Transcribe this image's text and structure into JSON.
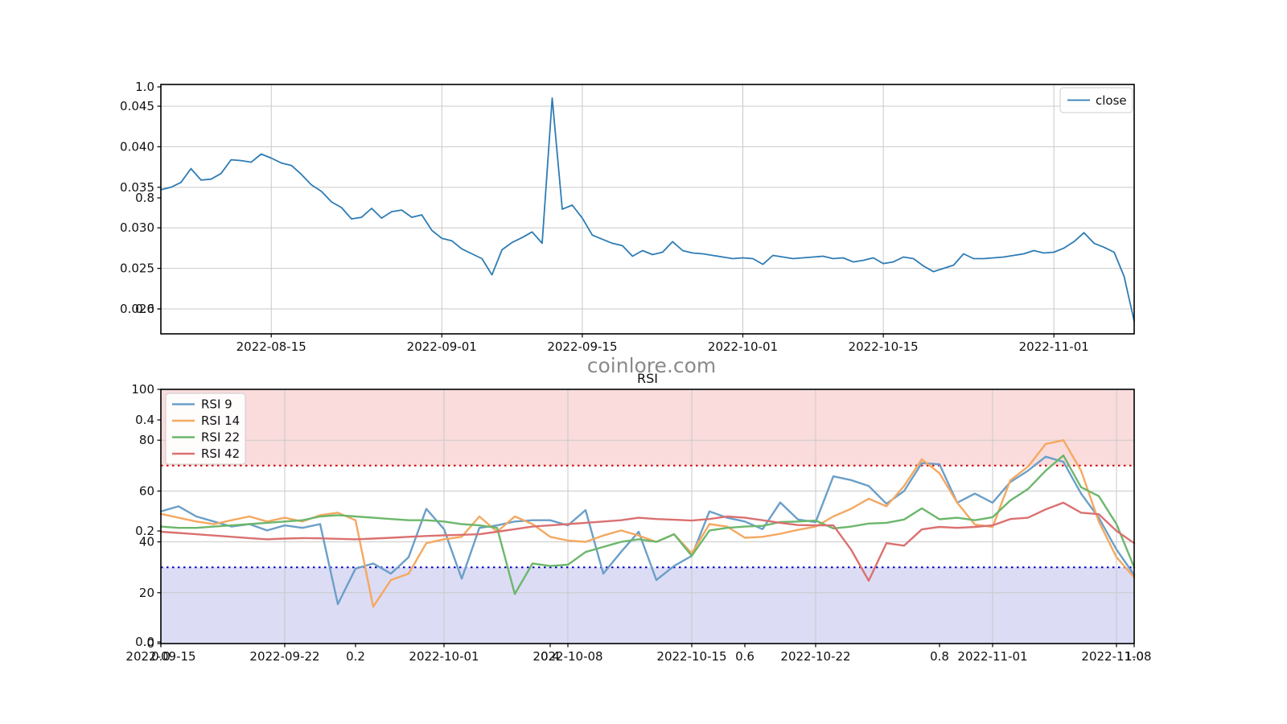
{
  "watermark": {
    "text": "coinlore.com",
    "color": "#8a8a8a"
  },
  "overlay_axis": {
    "x_tick_labels": [
      "0.0",
      "0.2",
      "0.4",
      "0.6",
      "0.8",
      "1.0"
    ],
    "y_tick_labels": [
      "0.0",
      "0.2",
      "0.4",
      "0.6",
      "0.8",
      "1.0"
    ]
  },
  "chart_data": [
    {
      "type": "line",
      "name": "price-chart",
      "x_start_date": "2022-08-04",
      "x_end_date": "2022-11-09",
      "x_tick_labels": [
        "2022-08-15",
        "2022-09-01",
        "2022-09-15",
        "2022-10-01",
        "2022-10-15",
        "2022-11-01"
      ],
      "x_tick_day_offsets": [
        11,
        28,
        42,
        58,
        72,
        89
      ],
      "y_tick_labels": [
        "0.020",
        "0.025",
        "0.030",
        "0.035",
        "0.040",
        "0.045"
      ],
      "y_tick_values": [
        0.02,
        0.025,
        0.03,
        0.035,
        0.04,
        0.045
      ],
      "ylim": [
        0.01693,
        0.04768
      ],
      "grid": true,
      "legend_position": "upper right",
      "series": [
        {
          "name": "close",
          "color": "#2d7cb5",
          "width": 1.8,
          "values": [
            0.0347,
            0.035,
            0.0356,
            0.0373,
            0.0359,
            0.036,
            0.0367,
            0.0384,
            0.0383,
            0.0381,
            0.0391,
            0.0386,
            0.038,
            0.0377,
            0.0366,
            0.0353,
            0.0345,
            0.0332,
            0.0325,
            0.0311,
            0.0313,
            0.0324,
            0.0312,
            0.032,
            0.0322,
            0.0313,
            0.0316,
            0.0297,
            0.0287,
            0.0284,
            0.0274,
            0.0268,
            0.0262,
            0.0242,
            0.0273,
            0.0282,
            0.0288,
            0.0295,
            0.0281,
            0.046,
            0.0323,
            0.0328,
            0.0312,
            0.0291,
            0.0286,
            0.0281,
            0.0278,
            0.0265,
            0.0272,
            0.0267,
            0.027,
            0.0283,
            0.0272,
            0.0269,
            0.0268,
            0.0266,
            0.0264,
            0.0262,
            0.0263,
            0.0262,
            0.0255,
            0.0266,
            0.0264,
            0.0262,
            0.0263,
            0.0264,
            0.0265,
            0.0262,
            0.0263,
            0.0258,
            0.026,
            0.0263,
            0.0256,
            0.0258,
            0.0264,
            0.0262,
            0.0253,
            0.0246,
            0.025,
            0.0254,
            0.0268,
            0.0262,
            0.0262,
            0.0263,
            0.0264,
            0.0266,
            0.0268,
            0.0272,
            0.0269,
            0.027,
            0.0275,
            0.0283,
            0.0294,
            0.0281,
            0.0276,
            0.027,
            0.024,
            0.0185
          ]
        }
      ]
    },
    {
      "type": "line",
      "name": "rsi-chart",
      "title": "RSI",
      "x_start_date": "2022-09-15",
      "x_end_date": "2022-11-09",
      "x_tick_labels": [
        "2022-09-15",
        "2022-09-22",
        "2022-10-01",
        "2022-10-08",
        "2022-10-15",
        "2022-10-22",
        "2022-11-01",
        "2022-11-08"
      ],
      "x_tick_day_offsets": [
        0,
        7,
        16,
        23,
        30,
        37,
        47,
        54
      ],
      "y_tick_labels": [
        "0",
        "20",
        "40",
        "60",
        "80",
        "100"
      ],
      "y_tick_values": [
        0,
        20,
        40,
        60,
        80,
        100
      ],
      "ylim": [
        0,
        100
      ],
      "grid": true,
      "legend_position": "upper left",
      "bands": [
        {
          "from": 70,
          "to": 100,
          "color": "#fadcdd",
          "meaning": "overbought"
        },
        {
          "from": 0,
          "to": 30,
          "color": "#dcdcf5",
          "meaning": "oversold"
        }
      ],
      "hlines": [
        {
          "y": 70,
          "color": "#cc0000",
          "style": "dotted"
        },
        {
          "y": 30,
          "color": "#0000bb",
          "style": "dotted"
        }
      ],
      "series": [
        {
          "name": "RSI 9",
          "color": "#6b9fc8",
          "width": 2.4,
          "values": [
            52,
            54,
            50,
            48,
            46,
            47,
            44.5,
            46.5,
            45.5,
            47,
            15.5,
            29.5,
            31.5,
            27.5,
            34,
            53,
            45,
            25.5,
            45.5,
            46.5,
            48,
            48.5,
            48.5,
            46.5,
            52.5,
            27.5,
            36,
            44,
            25,
            30.5,
            34.5,
            52,
            49.5,
            48,
            45,
            55.5,
            48.8,
            47.8,
            65.8,
            64.3,
            62,
            55,
            60,
            71,
            70.5,
            55.4,
            59,
            55.4,
            63.5,
            68,
            73.5,
            71.5,
            59,
            49.5,
            37,
            27
          ]
        },
        {
          "name": "RSI 14",
          "color": "#f5a860",
          "width": 2.4,
          "values": [
            51,
            49.5,
            48,
            47,
            48.5,
            50,
            48,
            49.5,
            48,
            50.5,
            51.5,
            48.5,
            14.5,
            25,
            27.5,
            39.5,
            41,
            42,
            50,
            44,
            50,
            47,
            42,
            40.5,
            40,
            42.5,
            44.5,
            42.5,
            40,
            43,
            35.5,
            47,
            46,
            41.6,
            42,
            43.2,
            44.7,
            46,
            50,
            53,
            57,
            54,
            62,
            72.5,
            67,
            55.4,
            46.8,
            45.9,
            64.2,
            69.6,
            78.5,
            80,
            68,
            48,
            34,
            26
          ]
        },
        {
          "name": "RSI 22",
          "color": "#6cb76c",
          "width": 2.4,
          "values": [
            46,
            45.5,
            45.5,
            46,
            46.5,
            47,
            47.5,
            48,
            48.5,
            50,
            50.5,
            50,
            49.5,
            49,
            48.5,
            48.5,
            48,
            47,
            46.5,
            45.5,
            19.5,
            31.5,
            30.5,
            31,
            36,
            38,
            40,
            41,
            40,
            43,
            34.5,
            44.5,
            45.5,
            46,
            46.3,
            47.8,
            48,
            48.4,
            45.3,
            46,
            47.2,
            47.5,
            48.8,
            53.2,
            48.9,
            49.5,
            48.5,
            49.7,
            56.3,
            60.8,
            68,
            74,
            61.5,
            58,
            47,
            30
          ]
        },
        {
          "name": "RSI 42",
          "color": "#db7070",
          "width": 2.4,
          "values": [
            44,
            43.5,
            43,
            42.5,
            42,
            41.5,
            41,
            41.3,
            41.5,
            41.4,
            41.2,
            41,
            41.3,
            41.6,
            42,
            42.3,
            42.6,
            42.8,
            43,
            44,
            45,
            46,
            46.5,
            47,
            47.5,
            48,
            48.5,
            49.5,
            49,
            48.7,
            48.4,
            49,
            50,
            49.5,
            48.5,
            47.5,
            46.6,
            46.5,
            46.5,
            37,
            24.7,
            39.5,
            38.5,
            44.9,
            45.9,
            45.5,
            45.9,
            46.5,
            49,
            49.5,
            52.8,
            55.4,
            51.5,
            50.9,
            44.3,
            39.5
          ]
        }
      ]
    }
  ]
}
